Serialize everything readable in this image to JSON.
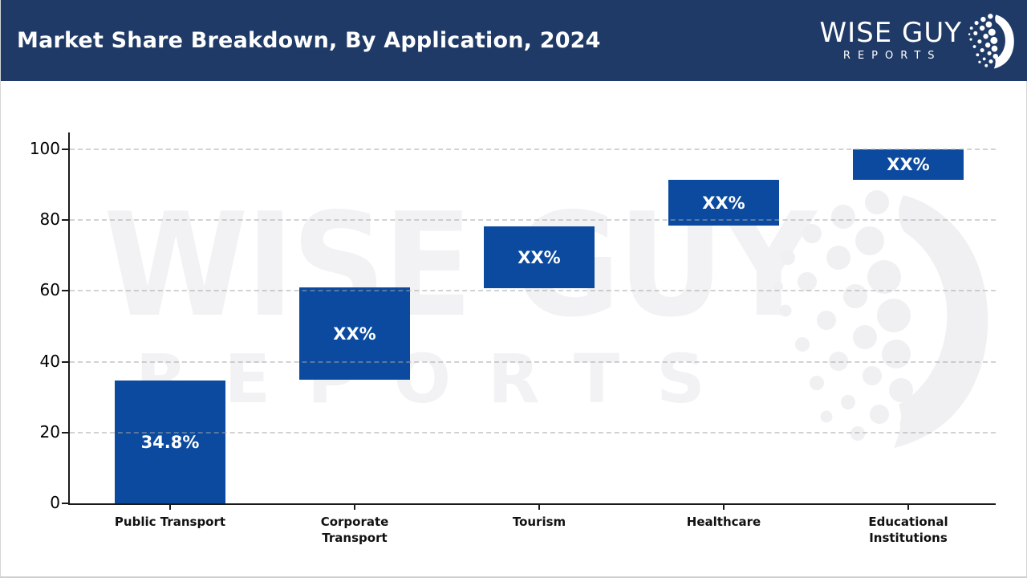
{
  "header": {
    "title": "Market Share Breakdown, By Application, 2024",
    "logo": {
      "line1": "WISE GUY",
      "line2": "REPORTS"
    },
    "bg_color": "#1f3a66"
  },
  "watermark": {
    "line1": "WISE GUY",
    "line2": "REPORTS"
  },
  "colors": {
    "header_bg": "#1f3a66",
    "bar": "#0b4a9e",
    "axis": "#1a1a1a",
    "grid": "#cccccc",
    "bar_label_text": "#ffffff",
    "watermark": "#f2f2f4"
  },
  "chart_data": {
    "type": "bar",
    "subtype": "waterfall",
    "title": "Market Share Breakdown, By Application, 2024",
    "xlabel": "",
    "ylabel": "",
    "categories": [
      "Public Transport",
      "Corporate Transport",
      "Tourism",
      "Healthcare",
      "Educational Institutions"
    ],
    "segments": [
      {
        "category": "Public Transport",
        "start": 0,
        "end": 34.8,
        "value": 34.8,
        "label": "34.8%"
      },
      {
        "category": "Corporate Transport",
        "start": 34.8,
        "end": 60.9,
        "value": 26.1,
        "label": "XX%"
      },
      {
        "category": "Tourism",
        "start": 60.9,
        "end": 78.3,
        "value": 17.4,
        "label": "XX%"
      },
      {
        "category": "Healthcare",
        "start": 78.3,
        "end": 91.3,
        "value": 13.0,
        "label": "XX%"
      },
      {
        "category": "Educational Institutions",
        "start": 91.3,
        "end": 100,
        "value": 8.7,
        "label": "XX%"
      }
    ],
    "yticks": [
      0,
      20,
      40,
      60,
      80,
      100
    ],
    "ylim": [
      0,
      105
    ],
    "grid": true,
    "grid_style": "dashed",
    "legend": false
  }
}
